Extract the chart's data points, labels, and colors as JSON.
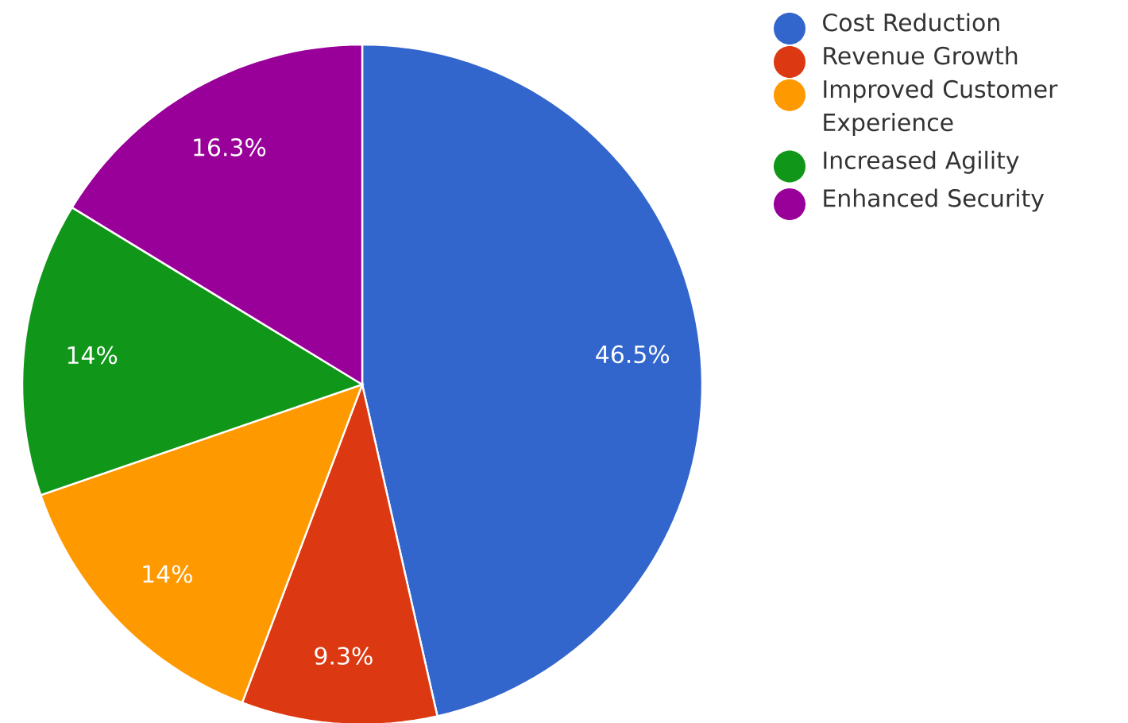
{
  "chart_data": {
    "type": "pie",
    "categories": [
      "Cost Reduction",
      "Revenue Growth",
      "Improved Customer Experience",
      "Increased Agility",
      "Enhanced Security"
    ],
    "values": [
      46.5,
      9.3,
      14,
      14,
      16.3
    ],
    "value_labels": [
      "46.5%",
      "9.3%",
      "14%",
      "14%",
      "16.3%"
    ],
    "colors": [
      "#3366cc",
      "#dc3912",
      "#ff9900",
      "#109618",
      "#990099"
    ],
    "legend": "right"
  }
}
